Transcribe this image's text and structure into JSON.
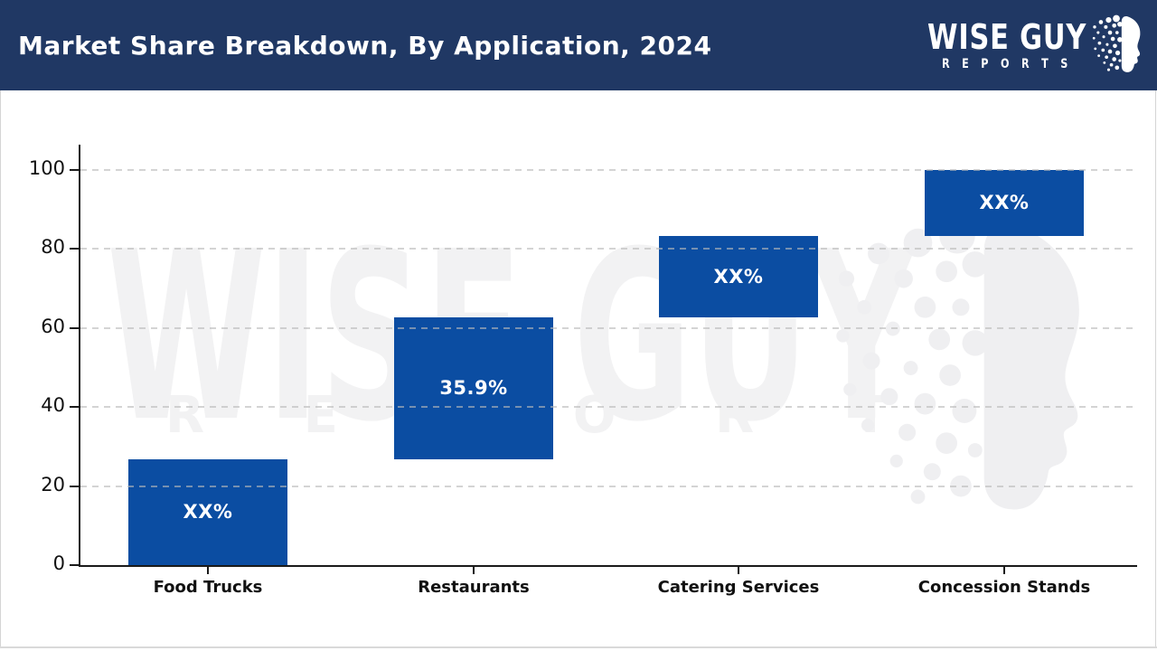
{
  "header": {
    "title": "Market Share Breakdown, By Application, 2024",
    "logo": {
      "wordmark": "WISE GUY",
      "subtext": "R E P O R T S"
    }
  },
  "watermark": {
    "line1": "WISE GUY",
    "line2": "R E P O R T S"
  },
  "colors": {
    "header_bg": "#203864",
    "bar_blue": "#0b4da2",
    "axis": "#1a1a1a",
    "grid_dash": "#b9b9b9",
    "watermark": "#f2f2f3",
    "bar_label_text": "#ffffff",
    "tick_text": "#111111",
    "edge_border": "#d4d4d4"
  },
  "chart_data": {
    "type": "bar",
    "subtype": "floating-segment (stacked breakdown shown as waterfall)",
    "title": "Market Share Breakdown, By Application, 2024",
    "categories": [
      "Food Trucks",
      "Restaurants",
      "Catering Services",
      "Concession Stands"
    ],
    "bars": [
      {
        "category": "Food Trucks",
        "start": 0,
        "end": 26.8,
        "share_label": "XX%"
      },
      {
        "category": "Restaurants",
        "start": 26.8,
        "end": 62.7,
        "share_label": "35.9%"
      },
      {
        "category": "Catering Services",
        "start": 62.7,
        "end": 83.1,
        "share_label": "XX%"
      },
      {
        "category": "Concession Stands",
        "start": 83.1,
        "end": 100,
        "share_label": "XX%"
      }
    ],
    "xlabel": "",
    "ylabel": "",
    "ylim": [
      0,
      105
    ],
    "yticks": [
      0,
      20,
      40,
      60,
      80,
      100
    ],
    "grid": "horizontal dashed lines at y ticks, drawn above bars",
    "legend": "none"
  }
}
